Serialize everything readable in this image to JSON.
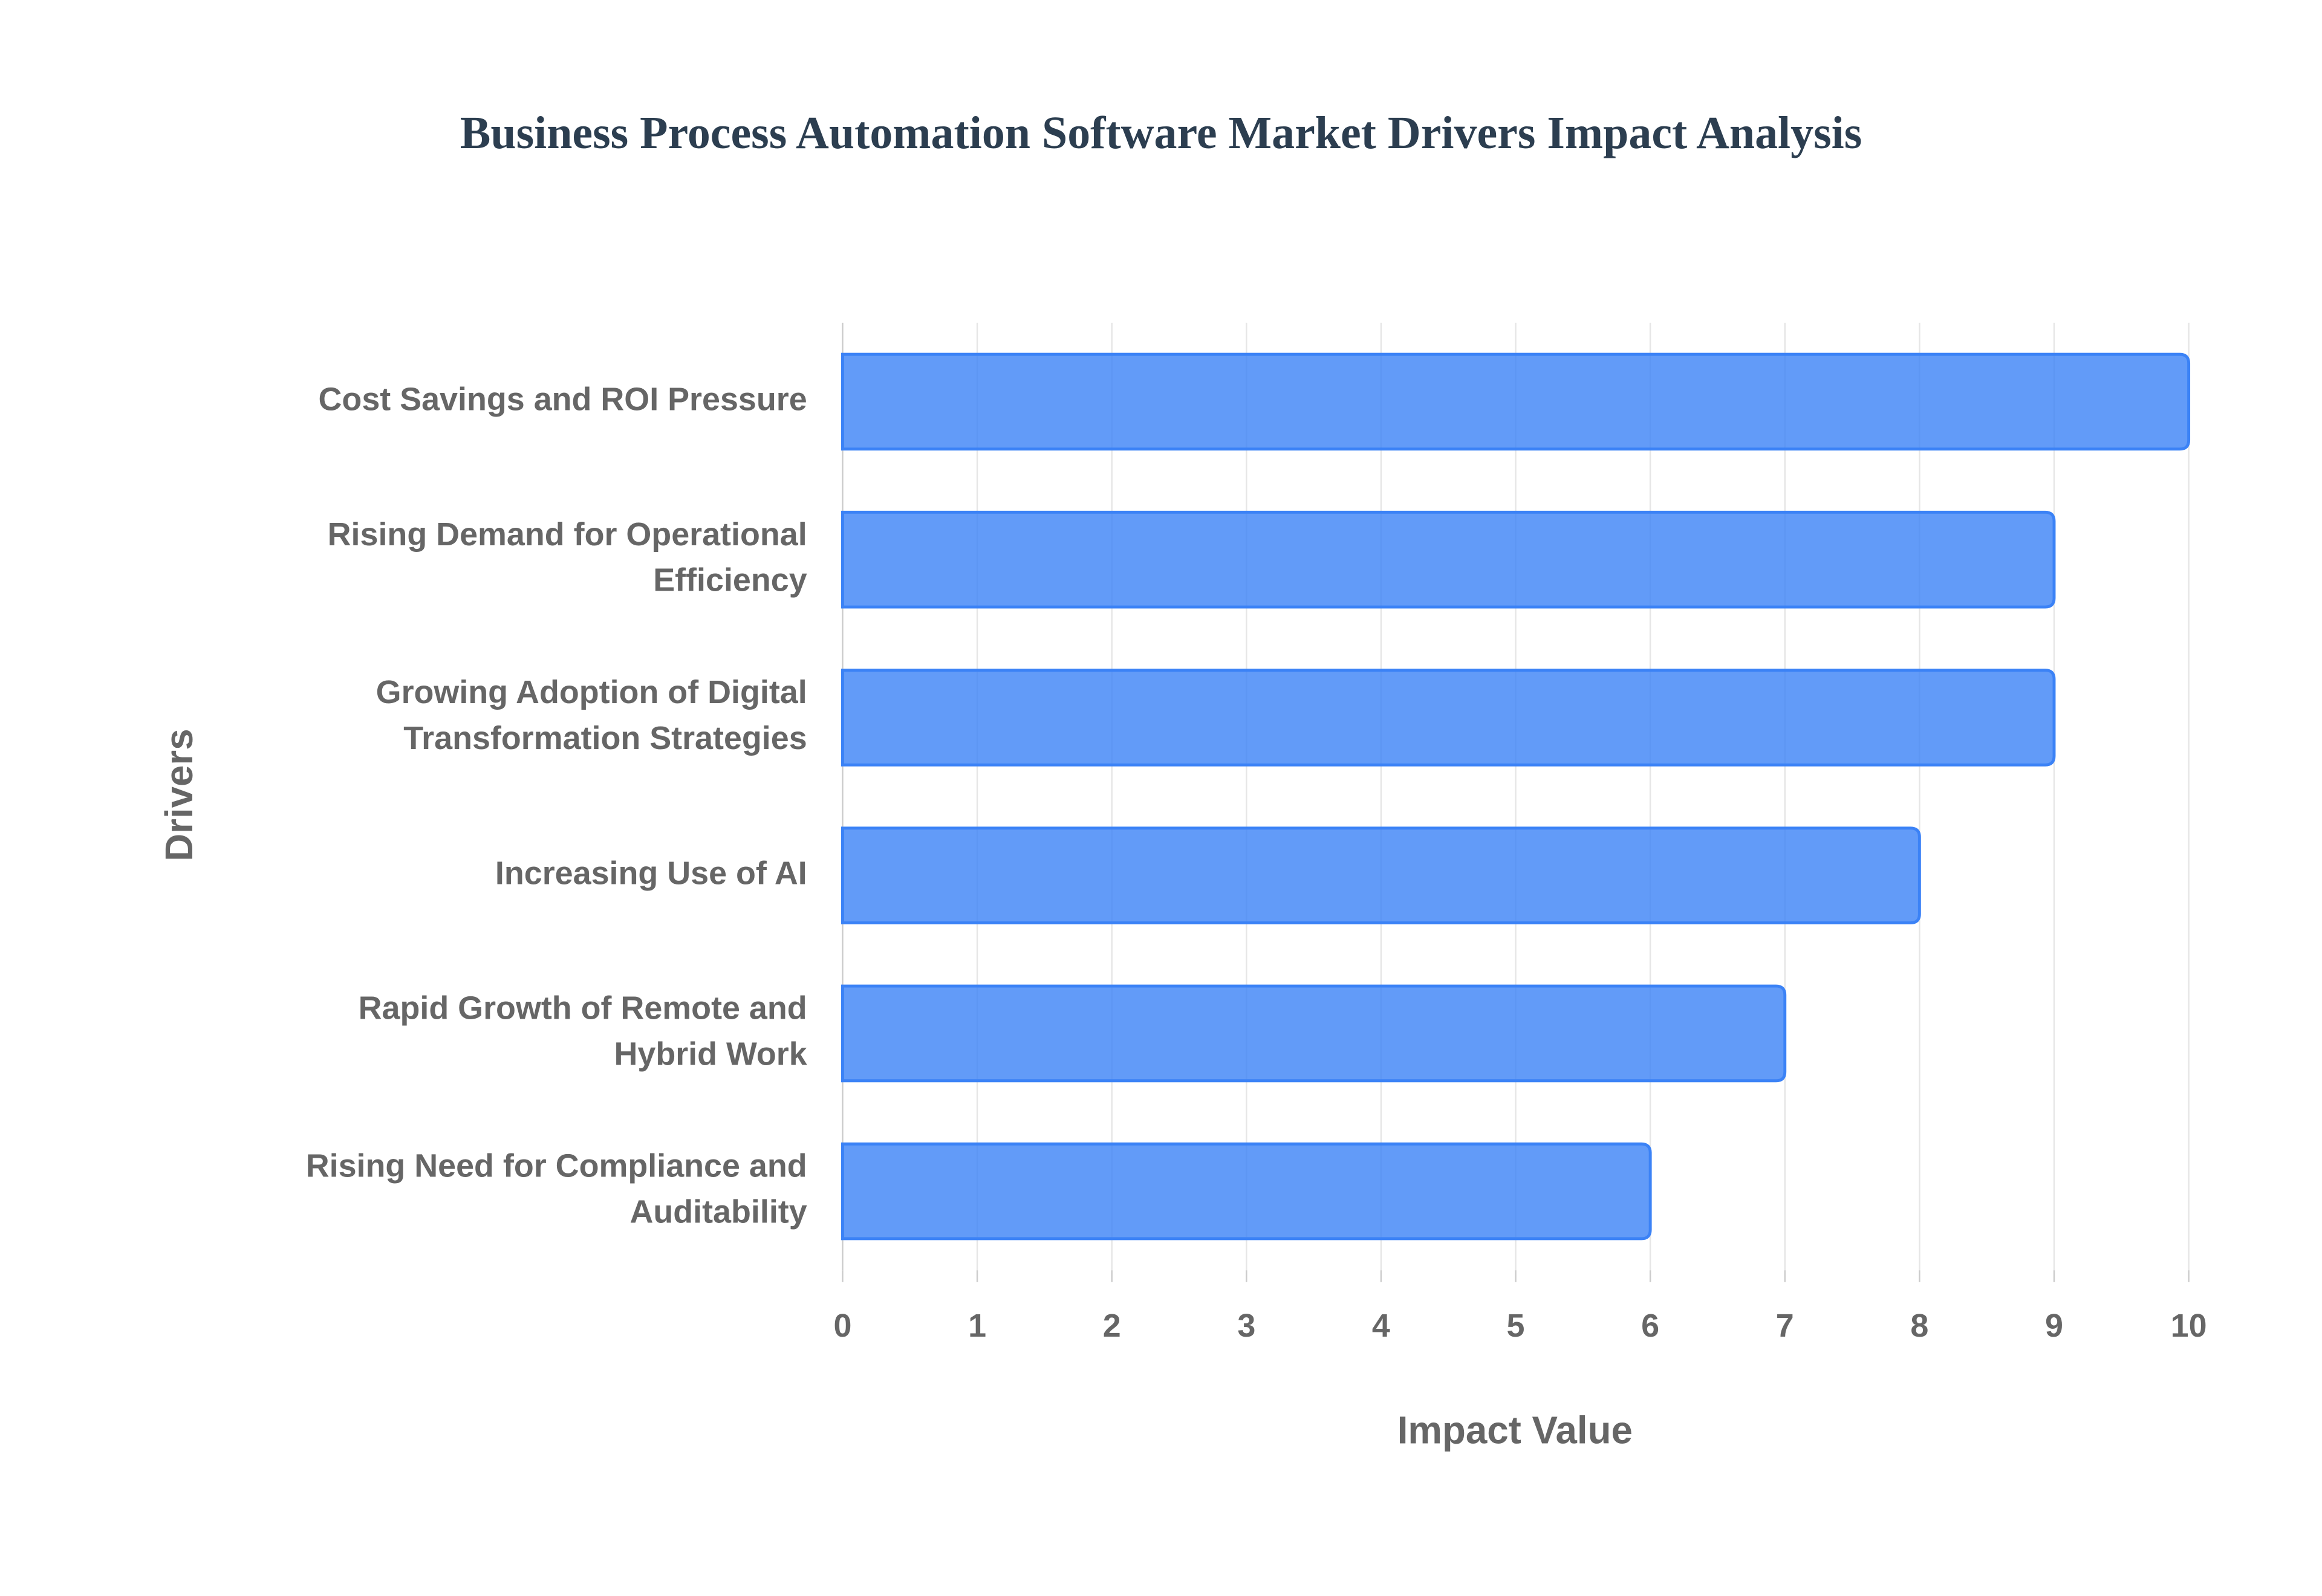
{
  "chart_data": {
    "type": "bar",
    "title": "Business Process Automation Software Market Drivers Impact Analysis",
    "x_label": "Impact Value",
    "y_label": "Drivers",
    "categories": [
      "Cost Savings and ROI Pressure",
      "Rising Demand for Operational Efficiency",
      "Growing Adoption of Digital Transformation Strategies",
      "Increasing Use of AI",
      "Rapid Growth of Remote and Hybrid Work",
      "Rising Need for Compliance and Auditability"
    ],
    "values": [
      10,
      9,
      9,
      8,
      7,
      6
    ],
    "color": "#3b82f6",
    "xlim": [
      0,
      10
    ],
    "xticks": [
      0,
      1,
      2,
      3,
      4,
      5,
      6,
      7,
      8,
      9,
      10
    ],
    "grid": true
  }
}
